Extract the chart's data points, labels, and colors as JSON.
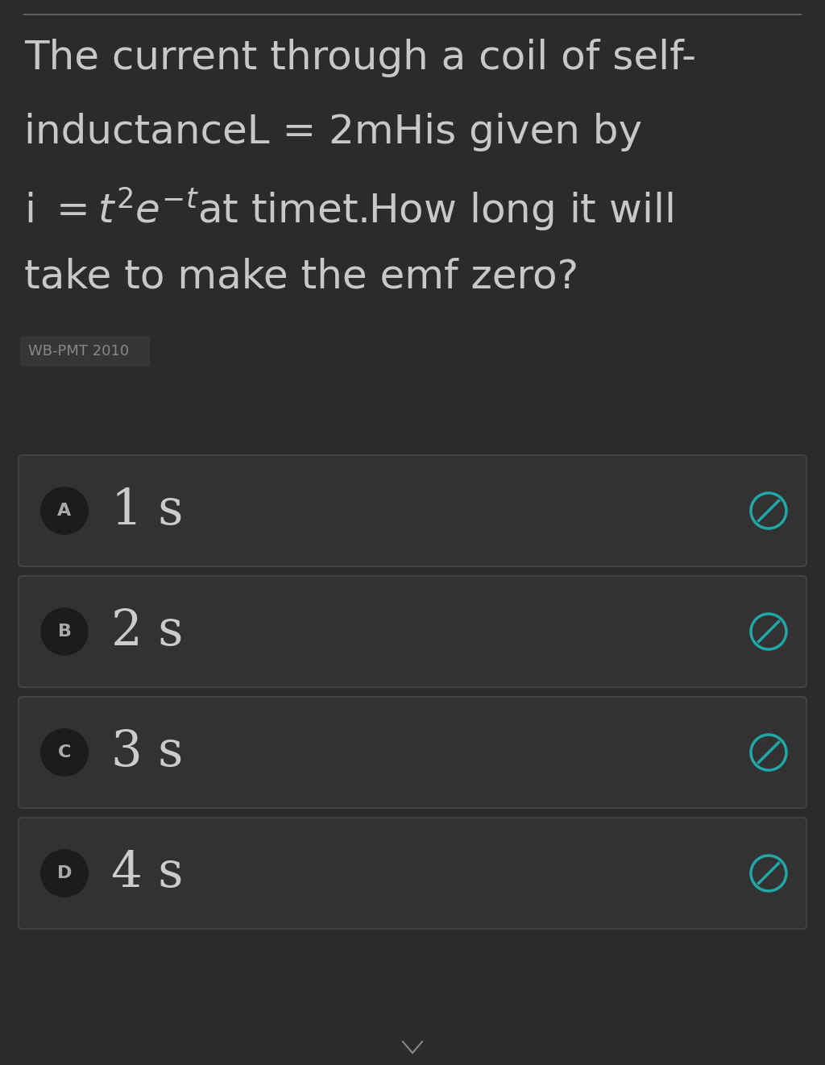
{
  "background_color": "#2b2b2b",
  "top_line_color": "#606060",
  "question_line1": "The current through a coil of self-",
  "question_line2": "inductanceL = 2mHis given by",
  "question_line4": "take to make the emf zero?",
  "question_color": "#c8c8c8",
  "source_text": "WB-PMT 2010",
  "source_color": "#888888",
  "source_bg": "#363636",
  "options": [
    {
      "label": "A",
      "text": "1 s"
    },
    {
      "label": "B",
      "text": "2 s"
    },
    {
      "label": "C",
      "text": "3 s"
    },
    {
      "label": "D",
      "text": "4 s"
    }
  ],
  "option_box_color": "#323232",
  "option_box_border": "#484848",
  "option_label_bg": "#1c1c1c",
  "option_label_color": "#aaaaaa",
  "option_text_color": "#cccccc",
  "icon_color": "#20a8a8",
  "figwidth": 10.24,
  "figheight": 13.22,
  "dpi": 100
}
